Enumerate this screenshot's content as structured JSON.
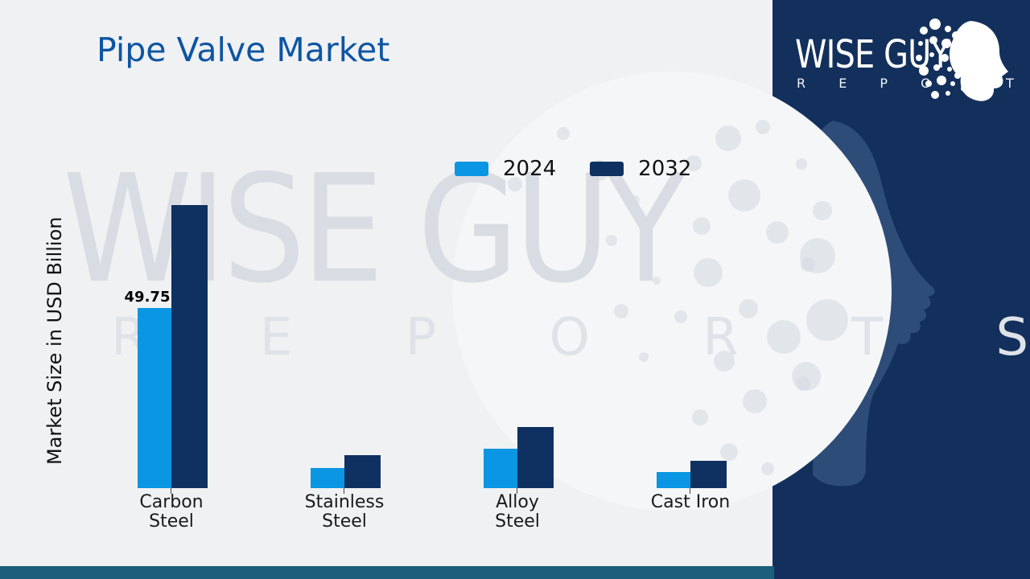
{
  "page": {
    "title": "Pipe Valve Market"
  },
  "logo": {
    "line1": "WISE GUY",
    "line2": "R E P O R T S"
  },
  "watermark": {
    "line1": "WISE GUY",
    "line2": "R E P O R T S"
  },
  "chart_data": {
    "type": "bar",
    "title": "Pipe Valve Market",
    "xlabel": "",
    "ylabel": "Market Size in USD Billion",
    "categories": [
      "Carbon Steel",
      "Stainless Steel",
      "Alloy Steel",
      "Cast Iron"
    ],
    "category_label_lines": [
      [
        "Carbon",
        "Steel"
      ],
      [
        "Stainless",
        "Steel"
      ],
      [
        "Alloy",
        "Steel"
      ],
      [
        "Cast Iron"
      ]
    ],
    "series": [
      {
        "name": "2024",
        "color": "#0a96e2",
        "values": [
          49.75,
          5.5,
          10.9,
          4.4
        ]
      },
      {
        "name": "2032",
        "color": "#0e3161",
        "values": [
          78.2,
          9.1,
          16.9,
          7.6
        ]
      }
    ],
    "value_labels": [
      {
        "category_index": 0,
        "series_index": 0,
        "text": "49.75"
      }
    ],
    "legend_position": "top-center",
    "ylim": [
      0,
      90
    ],
    "grid": false
  },
  "colors": {
    "title": "#0d55a3",
    "series_2024": "#0a96e2",
    "series_2032": "#0e3161",
    "panel_navy": "#13305c",
    "face_navy": "#2e4c78",
    "footer_teal": "#1d5e7c",
    "background": "#f0f1f3",
    "watermark_gray": "#d9dde3",
    "text_dark": "#1a1a1a"
  }
}
